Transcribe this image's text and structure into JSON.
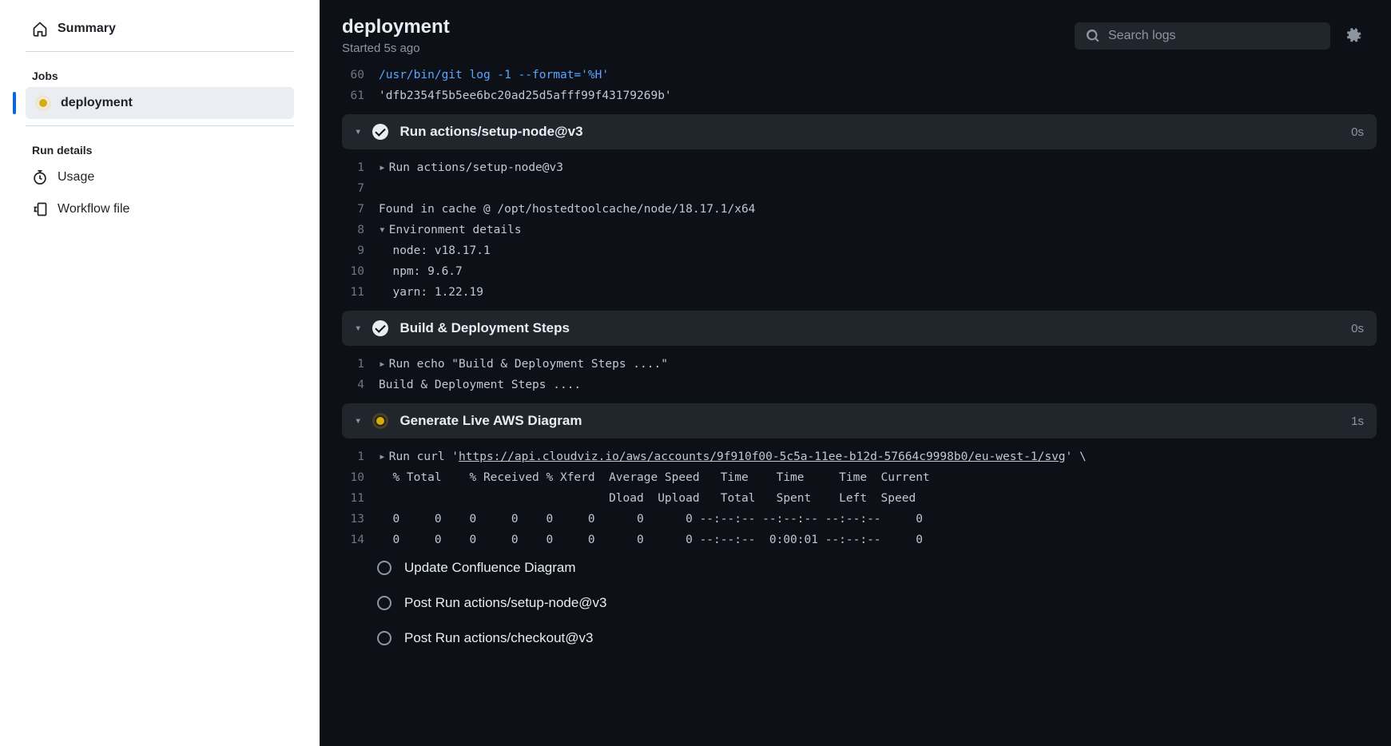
{
  "sidebar": {
    "summary_label": "Summary",
    "jobs_heading": "Jobs",
    "job_name": "deployment",
    "run_details_heading": "Run details",
    "usage_label": "Usage",
    "workflow_file_label": "Workflow file"
  },
  "header": {
    "title": "deployment",
    "subtitle": "Started 5s ago",
    "search_placeholder": "Search logs"
  },
  "top_lines": [
    {
      "no": "60",
      "content": "/usr/bin/git log -1 --format='%H'",
      "klass": "cmd-link"
    },
    {
      "no": "61",
      "content": "'dfb2354f5b5ee6bc20ad25d5afff99f43179269b'"
    }
  ],
  "steps": {
    "setup_node": {
      "title": "Run actions/setup-node@v3",
      "time": "0s",
      "lines": [
        {
          "no": "1",
          "caret": "right",
          "content": "Run actions/setup-node@v3"
        },
        {
          "no": "7",
          "content": ""
        },
        {
          "no": "7",
          "content": "Found in cache @ /opt/hostedtoolcache/node/18.17.1/x64"
        },
        {
          "no": "8",
          "caret": "down",
          "content": "Environment details"
        },
        {
          "no": "9",
          "content": "  node: v18.17.1"
        },
        {
          "no": "10",
          "content": "  npm: 9.6.7"
        },
        {
          "no": "11",
          "content": "  yarn: 1.22.19"
        }
      ]
    },
    "build": {
      "title": "Build & Deployment Steps",
      "time": "0s",
      "lines": [
        {
          "no": "1",
          "caret": "right",
          "content": "Run echo \"Build & Deployment Steps ....\""
        },
        {
          "no": "4",
          "content": "Build & Deployment Steps ...."
        }
      ]
    },
    "generate": {
      "title": "Generate Live AWS Diagram",
      "time": "1s",
      "url": "https://api.cloudviz.io/aws/accounts/9f910f00-5c5a-11ee-b12d-57664c9998b0/eu-west-1/svg",
      "run_prefix": "Run curl '",
      "run_suffix": "' \\",
      "lines_after": [
        {
          "no": "10",
          "content": "  % Total    % Received % Xferd  Average Speed   Time    Time     Time  Current"
        },
        {
          "no": "11",
          "content": "                                 Dload  Upload   Total   Spent    Left  Speed"
        },
        {
          "no": "13",
          "content": "  0     0    0     0    0     0      0      0 --:--:-- --:--:-- --:--:--     0"
        },
        {
          "no": "14",
          "content": "  0     0    0     0    0     0      0      0 --:--:--  0:00:01 --:--:--     0"
        }
      ]
    },
    "pending": [
      {
        "title": "Update Confluence Diagram"
      },
      {
        "title": "Post Run actions/setup-node@v3"
      },
      {
        "title": "Post Run actions/checkout@v3"
      }
    ]
  },
  "colors": {
    "sidebar_bg": "#ffffff",
    "main_bg": "#0d1117",
    "panel_bg": "#21262d",
    "muted": "#8d96a0",
    "link": "#58a6ff",
    "running_dot": "#dbab0a",
    "accent_blue": "#0969da"
  }
}
